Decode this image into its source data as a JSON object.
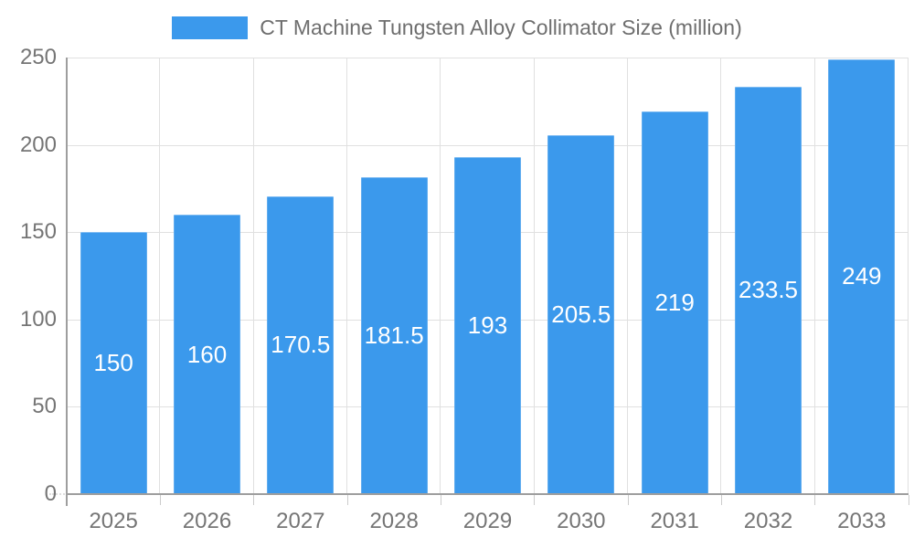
{
  "legend": {
    "label": "CT Machine Tungsten Alloy Collimator Size (million)"
  },
  "chart_data": {
    "type": "bar",
    "title": "CT Machine Tungsten Alloy Collimator Size (million)",
    "categories": [
      "2025",
      "2026",
      "2027",
      "2028",
      "2029",
      "2030",
      "2031",
      "2032",
      "2033"
    ],
    "values": [
      150,
      160,
      170.5,
      181.5,
      193,
      205.5,
      219,
      233.5,
      249
    ],
    "value_labels": [
      "150",
      "160",
      "170.5",
      "181.5",
      "193",
      "205.5",
      "219",
      "233.5",
      "249"
    ],
    "xlabel": "",
    "ylabel": "",
    "ylim": [
      0,
      250
    ],
    "yticks": [
      0,
      50,
      100,
      150,
      200,
      250
    ],
    "grid": true,
    "legend_position": "top",
    "colors": {
      "bar": "#3b99ec",
      "value_label": "#ffffff",
      "gridline": "#e0e0e0",
      "axis": "#9e9e9e",
      "category_tick": "#cccccc",
      "tick_label": "#757575",
      "title": "#6e6e6e",
      "background": "#ffffff"
    }
  }
}
